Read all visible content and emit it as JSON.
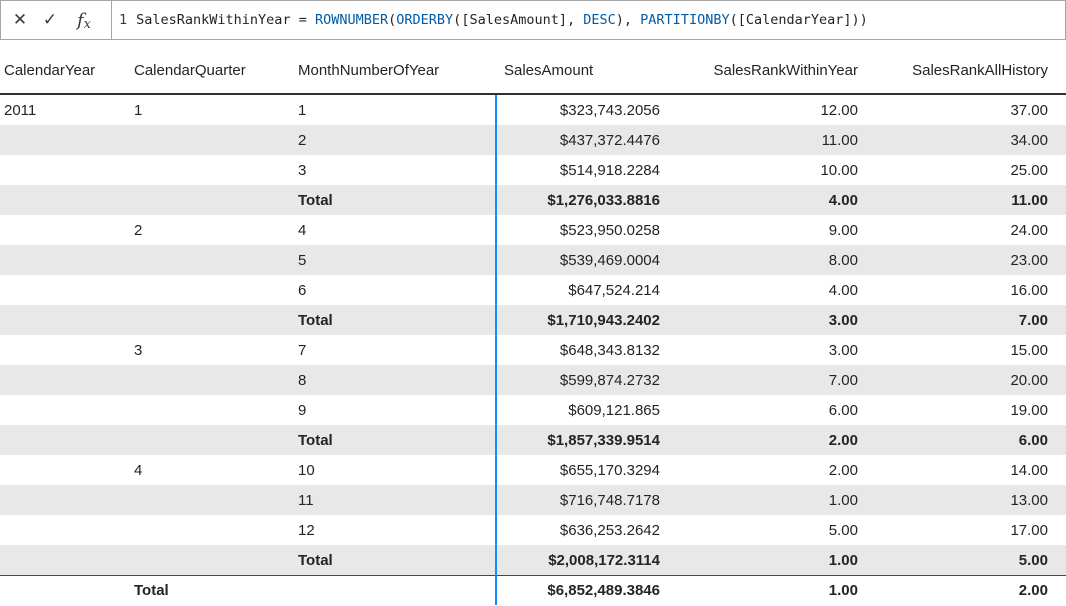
{
  "colors": {
    "text": "#252423",
    "function_token": "#035ba5",
    "plain_token": "#252423",
    "gridline_blue": "#118DFF",
    "row_banding": "#e8e8e8",
    "header_rule": "#323130"
  },
  "formula_bar": {
    "cancel_icon": "✕",
    "commit_icon": "✓",
    "fx_f": "f",
    "fx_x": "x",
    "line_number": "1",
    "formula_text": "SalesRankWithinYear = ROWNUMBER(ORDERBY([SalesAmount], DESC), PARTITIONBY([CalendarYear]))",
    "tokens": [
      {
        "text": "SalesRankWithinYear ",
        "color": "#252423"
      },
      {
        "text": "= ",
        "color": "#252423"
      },
      {
        "text": "ROWNUMBER",
        "color": "#035ba5"
      },
      {
        "text": "(",
        "color": "#252423"
      },
      {
        "text": "ORDERBY",
        "color": "#035ba5"
      },
      {
        "text": "(",
        "color": "#252423"
      },
      {
        "text": "[SalesAmount]",
        "color": "#252423"
      },
      {
        "text": ", ",
        "color": "#252423"
      },
      {
        "text": "DESC",
        "color": "#035ba5"
      },
      {
        "text": ")",
        "color": "#252423"
      },
      {
        "text": ", ",
        "color": "#252423"
      },
      {
        "text": "PARTITIONBY",
        "color": "#035ba5"
      },
      {
        "text": "(",
        "color": "#252423"
      },
      {
        "text": "[CalendarYear]",
        "color": "#252423"
      },
      {
        "text": "))",
        "color": "#252423"
      }
    ]
  },
  "table": {
    "columns": [
      {
        "key": "CalendarYear",
        "label": "CalendarYear",
        "align": "left",
        "header_align": "left"
      },
      {
        "key": "CalendarQuarter",
        "label": "CalendarQuarter",
        "align": "left",
        "header_align": "left"
      },
      {
        "key": "MonthNumberOfYear",
        "label": "MonthNumberOfYear",
        "align": "left",
        "header_align": "left"
      },
      {
        "key": "SalesAmount",
        "label": "SalesAmount",
        "align": "right",
        "header_align": "left"
      },
      {
        "key": "SalesRankWithinYear",
        "label": "SalesRankWithinYear",
        "align": "right",
        "header_align": "right"
      },
      {
        "key": "SalesRankAllHistory",
        "label": "SalesRankAllHistory",
        "align": "right",
        "header_align": "right"
      }
    ],
    "rows": [
      {
        "style": "data",
        "shaded": false,
        "cells": [
          "2011",
          "1",
          "1",
          "$323,743.2056",
          "12.00",
          "37.00"
        ]
      },
      {
        "style": "data",
        "shaded": true,
        "cells": [
          "",
          "",
          "2",
          "$437,372.4476",
          "11.00",
          "34.00"
        ]
      },
      {
        "style": "data",
        "shaded": false,
        "cells": [
          "",
          "",
          "3",
          "$514,918.2284",
          "10.00",
          "25.00"
        ]
      },
      {
        "style": "subtotal",
        "shaded": true,
        "cells": [
          "",
          "",
          "Total",
          "$1,276,033.8816",
          "4.00",
          "11.00"
        ]
      },
      {
        "style": "data",
        "shaded": false,
        "cells": [
          "",
          "2",
          "4",
          "$523,950.0258",
          "9.00",
          "24.00"
        ]
      },
      {
        "style": "data",
        "shaded": true,
        "cells": [
          "",
          "",
          "5",
          "$539,469.0004",
          "8.00",
          "23.00"
        ]
      },
      {
        "style": "data",
        "shaded": false,
        "cells": [
          "",
          "",
          "6",
          "$647,524.214",
          "4.00",
          "16.00"
        ]
      },
      {
        "style": "subtotal",
        "shaded": true,
        "cells": [
          "",
          "",
          "Total",
          "$1,710,943.2402",
          "3.00",
          "7.00"
        ]
      },
      {
        "style": "data",
        "shaded": false,
        "cells": [
          "",
          "3",
          "7",
          "$648,343.8132",
          "3.00",
          "15.00"
        ]
      },
      {
        "style": "data",
        "shaded": true,
        "cells": [
          "",
          "",
          "8",
          "$599,874.2732",
          "7.00",
          "20.00"
        ]
      },
      {
        "style": "data",
        "shaded": false,
        "cells": [
          "",
          "",
          "9",
          "$609,121.865",
          "6.00",
          "19.00"
        ]
      },
      {
        "style": "subtotal",
        "shaded": true,
        "cells": [
          "",
          "",
          "Total",
          "$1,857,339.9514",
          "2.00",
          "6.00"
        ]
      },
      {
        "style": "data",
        "shaded": false,
        "cells": [
          "",
          "4",
          "10",
          "$655,170.3294",
          "2.00",
          "14.00"
        ]
      },
      {
        "style": "data",
        "shaded": true,
        "cells": [
          "",
          "",
          "11",
          "$716,748.7178",
          "1.00",
          "13.00"
        ]
      },
      {
        "style": "data",
        "shaded": false,
        "cells": [
          "",
          "",
          "12",
          "$636,253.2642",
          "5.00",
          "17.00"
        ]
      },
      {
        "style": "subtotal",
        "shaded": true,
        "cells": [
          "",
          "",
          "Total",
          "$2,008,172.3114",
          "1.00",
          "5.00"
        ]
      },
      {
        "style": "grandtotal",
        "shaded": false,
        "cells": [
          "",
          "Total",
          "",
          "$6,852,489.3846",
          "1.00",
          "2.00"
        ]
      }
    ]
  }
}
